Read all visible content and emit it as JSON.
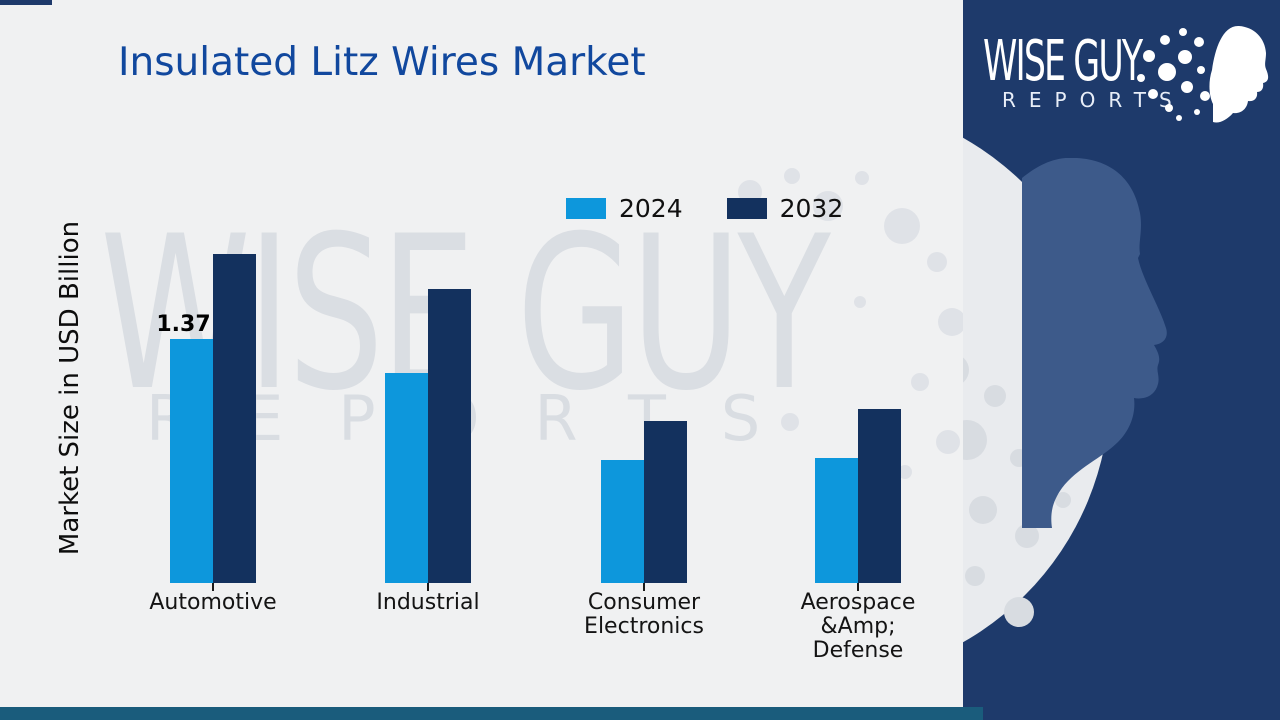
{
  "header": {
    "title": "Insulated Litz Wires Market"
  },
  "brand": {
    "name": "WISE GUY",
    "subtitle": "REPORTS"
  },
  "colors": {
    "title_blue": "#11489e",
    "bar_2024": "#0d97dc",
    "bar_2032": "#13315e",
    "panel_navy": "#1e3a6b",
    "footer_teal": "#1a5c7c",
    "face_blue": "#3d5a8a",
    "text_dark": "#141414"
  },
  "chart_data": {
    "type": "bar",
    "title": "Insulated Litz Wires Market",
    "ylabel": "Market Size in USD Billion",
    "xlabel": "",
    "categories": [
      "Automotive",
      "Industrial",
      "Consumer Electronics",
      "Aerospace &Amp; Defense"
    ],
    "series": [
      {
        "name": "2024",
        "color": "#0d97dc",
        "values": [
          1.37,
          1.18,
          0.69,
          0.7
        ]
      },
      {
        "name": "2032",
        "color": "#13315e",
        "values": [
          1.85,
          1.65,
          0.91,
          0.98
        ]
      }
    ],
    "bar_labels": [
      {
        "series": "2024",
        "category": "Automotive",
        "text": "1.37"
      }
    ],
    "ylim": [
      0,
      2.0
    ],
    "grid": false,
    "legend_position": "top-center"
  }
}
